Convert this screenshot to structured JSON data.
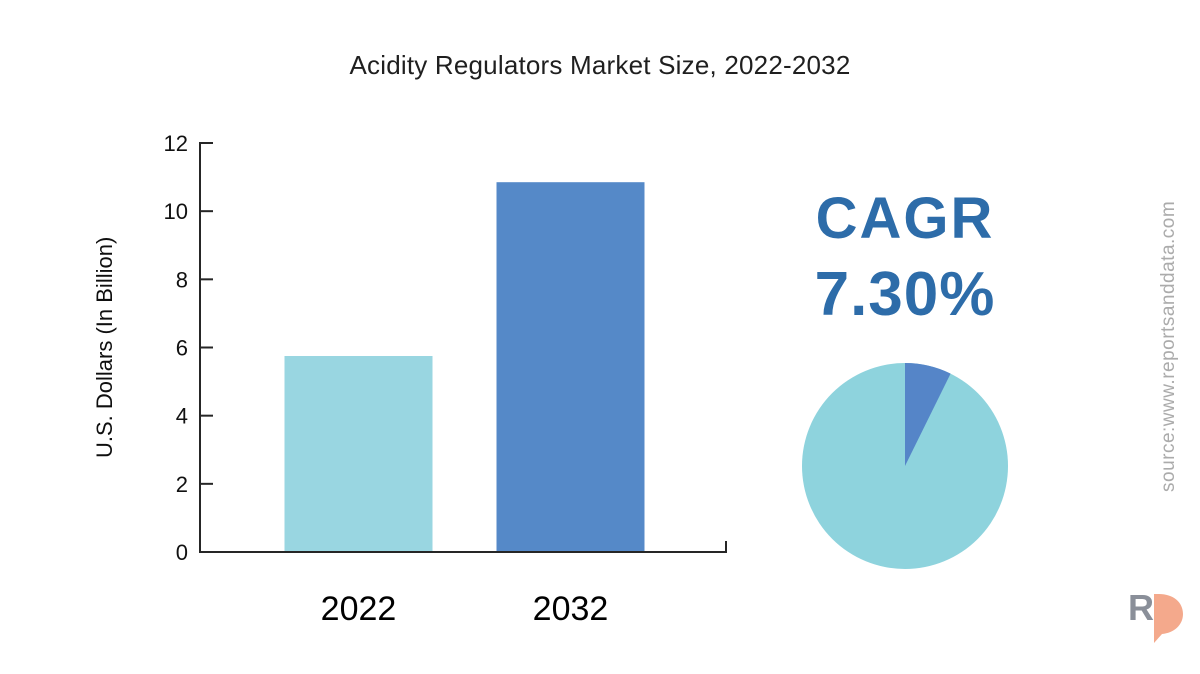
{
  "title": "Acidity Regulators Market Size, 2022-2032",
  "source_text": "source:www.reportsanddata.com",
  "cagr": {
    "label": "CAGR",
    "value": "7.30%",
    "percent": 7.3
  },
  "logo": {
    "r_letter": "R"
  },
  "colors": {
    "accent_blue": "#2d6ca9",
    "bar_2022": "#99d6e1",
    "bar_2032": "#5589c8",
    "pie_main": "#8ed3dd",
    "pie_slice": "#5585c8",
    "axis": "#262626",
    "tick_label": "#111111",
    "title_text": "#1f1f1f",
    "source_gray": "#ababab",
    "logo_gray": "#8a8f99",
    "logo_peach": "#f4a98c"
  },
  "chart_data": [
    {
      "type": "bar",
      "title": "Acidity Regulators Market Size, 2022-2032",
      "categories": [
        "2022",
        "2032"
      ],
      "values": [
        5.75,
        10.85
      ],
      "bar_colors": [
        "#99d6e1",
        "#5589c8"
      ],
      "xlabel": "",
      "ylabel": "U.S. Dollars (In Billion)",
      "ylim": [
        0,
        12
      ],
      "yticks": [
        0,
        2,
        4,
        6,
        8,
        10,
        12
      ],
      "grid": false,
      "legend": "none"
    },
    {
      "type": "pie",
      "title": "CAGR 7.30%",
      "slices": [
        {
          "name": "cagr",
          "value": 7.3,
          "color": "#5585c8"
        },
        {
          "name": "remainder",
          "value": 92.7,
          "color": "#8ed3dd"
        }
      ],
      "start_angle_deg": -90,
      "direction": "clockwise",
      "labels_shown": false
    }
  ]
}
